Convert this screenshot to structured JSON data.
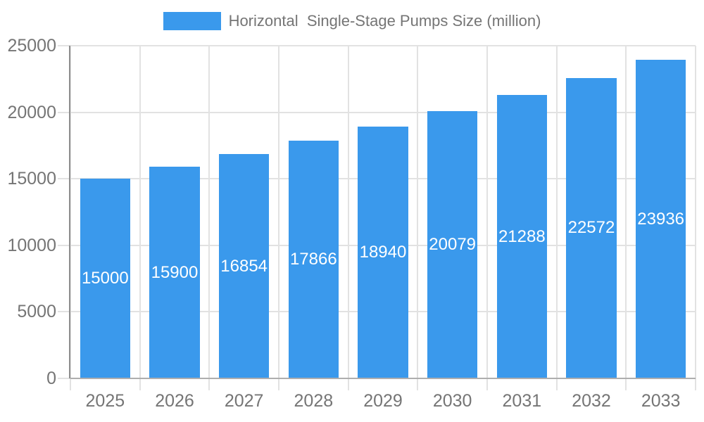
{
  "legend": {
    "label": "Horizontal  Single-Stage Pumps Size (million)"
  },
  "colors": {
    "bar": "#3A99EC",
    "grid": "#e2e2e2",
    "y_axis": "#8e8e8e",
    "x_axis": "#aeaeae",
    "axis_text": "#757575",
    "value_label_text": "#ffffff",
    "background": "#ffffff"
  },
  "chart_data": {
    "type": "bar",
    "title": "Horizontal  Single-Stage Pumps Size (million)",
    "series_name": "Horizontal  Single-Stage Pumps Size (million)",
    "categories": [
      "2025",
      "2026",
      "2027",
      "2028",
      "2029",
      "2030",
      "2031",
      "2032",
      "2033"
    ],
    "values": [
      15000,
      15900,
      16854,
      17866,
      18940,
      20079,
      21288,
      22572,
      23936
    ],
    "value_labels_shown": [
      "15000",
      "15900",
      "16854",
      "17866",
      "18940",
      "20079",
      "21288",
      "22572",
      "23936"
    ],
    "xlabel": "",
    "ylabel": "",
    "ylim": [
      0,
      25000
    ],
    "y_ticks": [
      0,
      5000,
      10000,
      15000,
      20000,
      25000
    ],
    "grid": "horizontal and vertical light gray gridlines",
    "legend_position": "top-center",
    "value_label_position": "inside-center",
    "bar_color": "#3A99EC"
  }
}
